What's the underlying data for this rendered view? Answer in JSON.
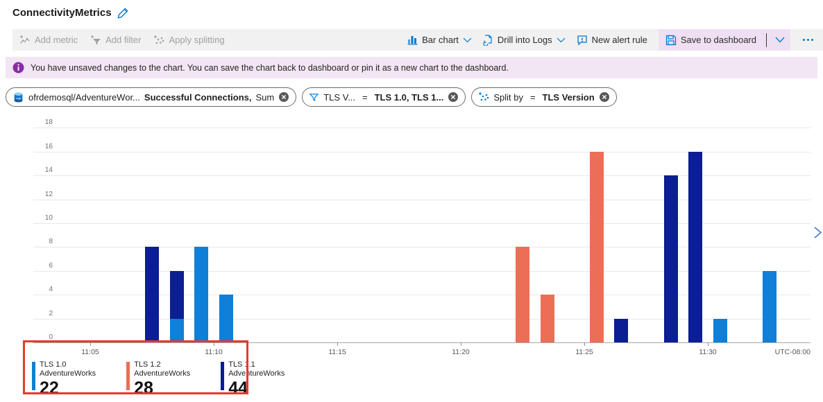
{
  "window": {
    "title": "ConnectivityMetrics"
  },
  "toolbar": {
    "add_metric": "Add metric",
    "add_filter": "Add filter",
    "apply_splitting": "Apply splitting",
    "chart_type": "Bar chart",
    "drill_into_logs": "Drill into Logs",
    "new_alert_rule": "New alert rule",
    "save_to_dashboard": "Save to dashboard"
  },
  "banner": {
    "text": "You have unsaved changes to the chart. You can save the chart back to dashboard or pin it as a new chart to the dashboard."
  },
  "pills": [
    {
      "resource": "ofrdemosql/AdventureWor...",
      "metric": "Successful Connections,",
      "aggregation": "Sum"
    },
    {
      "field": "TLS V...",
      "operator": "=",
      "value": "TLS 1.0, TLS 1..."
    },
    {
      "field": "Split by",
      "operator": "=",
      "value": "TLS Version"
    }
  ],
  "colors": {
    "accent_blue": "#0078d4",
    "toolbar_bg": "#f1f1f1",
    "banner_bg": "#f2e6f4",
    "banner_icon_purple": "#8a2da5",
    "save_highlight_bg": "#eee0f2",
    "annotation_red": "#e8382b",
    "disabled_gray": "#a19f9d"
  },
  "icons": {
    "edit": "pencil-icon",
    "info": "info-circle-icon",
    "dismiss": "close-icon",
    "resource": "sql-database-icon",
    "filter": "filter-funnel-icon",
    "split": "split-scatter-icon",
    "more": "ellipsis-icon",
    "expand": "chevron-right-icon"
  },
  "chart_data": {
    "type": "bar",
    "stacked": true,
    "ylim": [
      0,
      18
    ],
    "y_tick_step": 2,
    "x_ticks": [
      "11:05",
      "11:10",
      "11:15",
      "11:20",
      "11:25",
      "11:30"
    ],
    "x_axis_note": "UTC-08:00",
    "bucket_minutes": 1,
    "grid": true,
    "legend_position": "bottom",
    "series": [
      {
        "name": "TLS 1.0",
        "resource": "AdventureWorks",
        "total": 22,
        "color": "#0f7fd8",
        "points": [
          {
            "t": "11:08",
            "v": 2
          },
          {
            "t": "11:09",
            "v": 8
          },
          {
            "t": "11:10",
            "v": 4
          },
          {
            "t": "11:30",
            "v": 2
          },
          {
            "t": "11:32",
            "v": 6
          }
        ]
      },
      {
        "name": "TLS 1.2",
        "resource": "AdventureWorks",
        "total": 28,
        "color": "#ec6e56",
        "points": [
          {
            "t": "11:22",
            "v": 8
          },
          {
            "t": "11:23",
            "v": 4
          },
          {
            "t": "11:25",
            "v": 16
          }
        ]
      },
      {
        "name": "TLS 1.1",
        "resource": "AdventureWorks",
        "total": 44,
        "color": "#0b1e94",
        "points": [
          {
            "t": "11:07",
            "v": 8
          },
          {
            "t": "11:08",
            "v": 4
          },
          {
            "t": "11:26",
            "v": 2
          },
          {
            "t": "11:28",
            "v": 14
          },
          {
            "t": "11:29",
            "v": 16
          }
        ]
      }
    ]
  }
}
